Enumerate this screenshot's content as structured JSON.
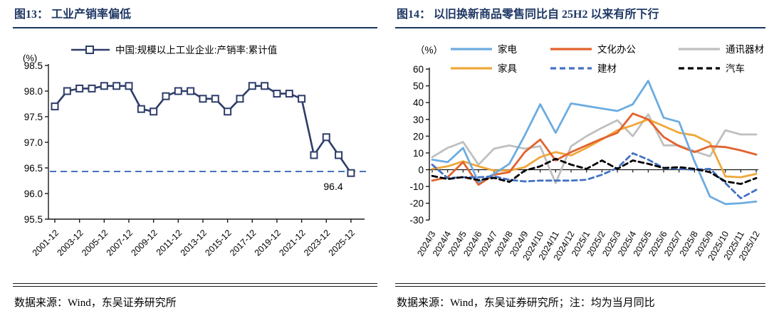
{
  "figures": [
    {
      "id": "fig13",
      "title": "图13：  工业产销率偏低",
      "source_note": "数据来源：Wind，东吴证券研究所",
      "chart_data": {
        "type": "line",
        "title": "工业产销率偏低",
        "series_name": "中国:规模以上工业企业:产销率:累计值",
        "y_unit": "(%)",
        "x": [
          "2001-12",
          "2002-12",
          "2003-12",
          "2004-12",
          "2005-12",
          "2006-12",
          "2007-12",
          "2008-12",
          "2009-12",
          "2010-12",
          "2011-12",
          "2012-12",
          "2013-12",
          "2014-12",
          "2015-12",
          "2016-12",
          "2017-12",
          "2018-12",
          "2019-12",
          "2020-12",
          "2021-12",
          "2022-12",
          "2023-12",
          "2024-12",
          "2025-12"
        ],
        "values": [
          97.7,
          98.0,
          98.05,
          98.05,
          98.1,
          98.1,
          98.1,
          97.65,
          97.6,
          97.9,
          98.0,
          98.0,
          97.85,
          97.85,
          97.6,
          97.85,
          98.1,
          98.1,
          97.95,
          97.95,
          97.85,
          96.75,
          97.1,
          96.75,
          96.4
        ],
        "x_tick_labels": [
          "2001-12",
          "2003-12",
          "2005-12",
          "2007-12",
          "2009-12",
          "2011-12",
          "2013-12",
          "2015-12",
          "2017-12",
          "2019-12",
          "2021-12",
          "2023-12",
          "2025-12"
        ],
        "ylim": [
          95.5,
          98.5
        ],
        "y_tick_labels": [
          "98.5",
          "98.0",
          "97.5",
          "97.0",
          "96.5",
          "96.0",
          "95.5"
        ],
        "line_color": "#2E3D69",
        "marker": "open-square",
        "reference_line": {
          "value": 96.43,
          "color": "#4472C4",
          "style": "dashed"
        },
        "annotation": {
          "text": "96.4"
        },
        "grid": false,
        "legend_position": "top"
      }
    },
    {
      "id": "fig14",
      "title": "图14：  以旧换新商品零售同比自 25H2 以来有所下行",
      "source_note": "数据来源：Wind，东吴证券研究所；注：均为当月同比",
      "chart_data": {
        "type": "line",
        "title": "以旧换新商品零售同比",
        "y_unit": "（%）",
        "x": [
          "2024/3",
          "2024/4",
          "2024/5",
          "2024/6",
          "2024/7",
          "2024/8",
          "2024/9",
          "2024/10",
          "2024/11",
          "2024/12",
          "2025/1",
          "2025/2",
          "2025/3",
          "2025/4",
          "2025/5",
          "2025/6",
          "2025/7",
          "2025/8",
          "2025/9",
          "2025/10",
          "2025/11",
          "2025/12"
        ],
        "ylim": [
          -30,
          60
        ],
        "y_tick_labels": [
          "60",
          "50",
          "40",
          "30",
          "20",
          "10",
          "0",
          "-10",
          "-20",
          "-30"
        ],
        "legend_order": [
          "家电",
          "文化办公",
          "通讯器材",
          "家具",
          "建材",
          "汽车"
        ],
        "z_order": [
          "通讯器材",
          "家具",
          "文化办公",
          "家电",
          "建材",
          "汽车"
        ],
        "series": [
          {
            "name": "家电",
            "color": "#6CACE0",
            "dash": false,
            "values": [
              6,
              4.5,
              13,
              -7.5,
              -2.5,
              3.5,
              20.5,
              39,
              22,
              39.5,
              38,
              36.5,
              35,
              39,
              53,
              31,
              28.5,
              5,
              -16,
              -20.5,
              -20,
              -19
            ]
          },
          {
            "name": "文化办公",
            "color": "#E2622D",
            "dash": false,
            "values": [
              -6.5,
              -4.5,
              4.5,
              -9,
              -3,
              -1.5,
              10.5,
              18,
              5.5,
              10.5,
              14.5,
              18.5,
              22,
              33.5,
              30,
              19.5,
              14,
              10.5,
              14,
              13.5,
              11.5,
              9
            ]
          },
          {
            "name": "通讯器材",
            "color": "#BFBFBF",
            "dash": false,
            "values": [
              7.5,
              13,
              16.5,
              3,
              12.5,
              14.5,
              12.5,
              14,
              -8,
              14,
              20,
              25,
              29.5,
              20,
              33,
              14.5,
              14.5,
              11,
              8,
              23.5,
              21,
              21
            ]
          },
          {
            "name": "家具",
            "color": "#F0A73A",
            "dash": false,
            "values": [
              0.5,
              2,
              5,
              2,
              -0.5,
              -0.5,
              1.5,
              7.5,
              10.5,
              8.5,
              13,
              18,
              23.5,
              26.5,
              30,
              26,
              22,
              20.5,
              16,
              -4,
              -4.5,
              -2.5
            ]
          },
          {
            "name": "建材",
            "color": "#4472C4",
            "dash": true,
            "values": [
              3,
              -5,
              -4.5,
              -4.5,
              -4,
              -6,
              -7,
              -6.5,
              -6.5,
              -6.5,
              -6,
              -3,
              1,
              9.8,
              6,
              1,
              0.5,
              0,
              0.5,
              -8,
              -17,
              -12
            ]
          },
          {
            "name": "汽车",
            "color": "#000000",
            "dash": true,
            "values": [
              -3.7,
              -5.6,
              -4.4,
              -6.2,
              -4.9,
              -7.3,
              -0.5,
              2,
              6.5,
              3,
              0.5,
              5.5,
              0.5,
              5.5,
              3.5,
              1,
              1.5,
              0.5,
              -1.5,
              -7,
              -8.5,
              -5
            ]
          }
        ],
        "grid": false,
        "legend_position": "top"
      }
    }
  ]
}
